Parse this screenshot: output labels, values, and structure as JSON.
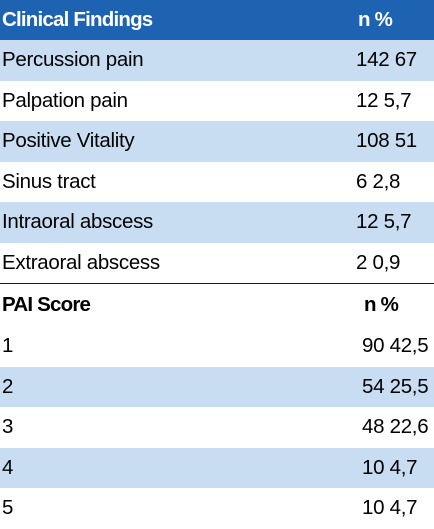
{
  "clinical": {
    "header": {
      "label": "Clinical Findings",
      "value": "n %"
    },
    "rows": [
      {
        "label": "Percussion pain",
        "value": "142 67"
      },
      {
        "label": "Palpation pain",
        "value": "12 5,7"
      },
      {
        "label": "Positive Vitality",
        "value": "108 51"
      },
      {
        "label": "Sinus tract",
        "value": "6 2,8"
      },
      {
        "label": "Intraoral abscess",
        "value": "12 5,7"
      },
      {
        "label": "Extraoral abscess",
        "value": "2 0,9"
      }
    ]
  },
  "pai": {
    "header": {
      "label": "PAI Score",
      "value": "n %"
    },
    "rows": [
      {
        "label": "1",
        "value": "90 42,5"
      },
      {
        "label": "2",
        "value": "54 25,5"
      },
      {
        "label": "3",
        "value": "48 22,6"
      },
      {
        "label": "4",
        "value": "10 4,7"
      },
      {
        "label": "5",
        "value": "10 4,7"
      }
    ]
  },
  "colors": {
    "header_blue": "#1d63b2",
    "stripe": "#c8dcf2",
    "rule": "#1a1a1a"
  }
}
